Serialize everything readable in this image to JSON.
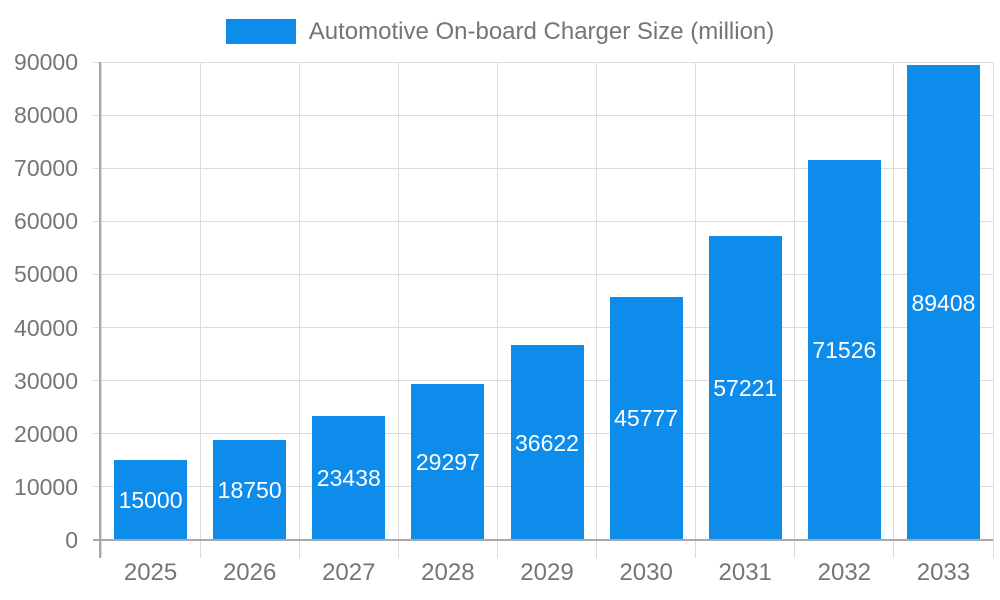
{
  "chart_data": {
    "type": "bar",
    "title": "Automotive On-board Charger Size (million)",
    "legend_entries": [
      "Automotive On-board Charger Size (million)"
    ],
    "legend_position": "top",
    "categories": [
      "2025",
      "2026",
      "2027",
      "2028",
      "2029",
      "2030",
      "2031",
      "2032",
      "2033"
    ],
    "values": [
      15000,
      18750,
      23438,
      29297,
      36622,
      45777,
      57221,
      71526,
      89408
    ],
    "bar_value_labels": [
      "15000",
      "18750",
      "23438",
      "29297",
      "36622",
      "45777",
      "57221",
      "71526",
      "89408"
    ],
    "xlabel": "",
    "ylabel": "",
    "ylim": [
      0,
      90000
    ],
    "y_ticks": [
      0,
      10000,
      20000,
      30000,
      40000,
      50000,
      60000,
      70000,
      80000,
      90000
    ],
    "grid": true
  },
  "colors": {
    "bar": "#0d8ceb",
    "grid": "#dcdcdc",
    "axis": "#a8a8a8",
    "text": "#757575",
    "bar_label": "#ffffff",
    "background": "#ffffff"
  }
}
